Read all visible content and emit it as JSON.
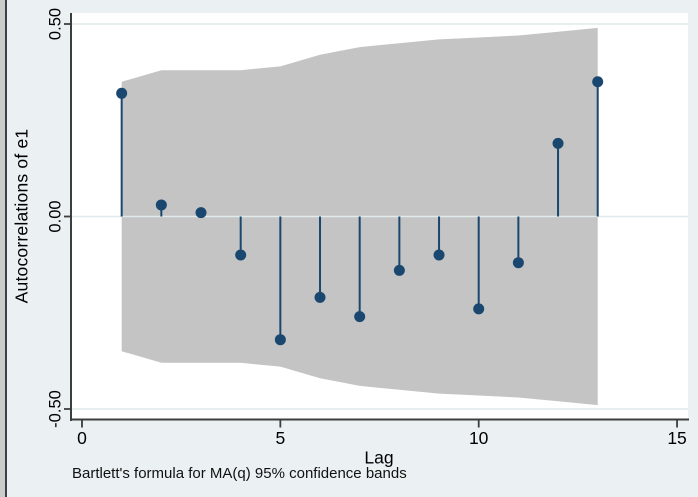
{
  "window": {
    "background": "#ebf1f2",
    "left_border_light": "#c9cccb",
    "left_border_dark": "#3b4145"
  },
  "chart_data": {
    "type": "stem",
    "title": "",
    "ylabel": "Autocorrelations of e1",
    "xlabel": "Lag",
    "note": "Bartlett's formula for MA(q) 95% confidence bands",
    "grid": true,
    "legend_position": "none",
    "xlim": [
      -0.3,
      15.3
    ],
    "ylim": [
      -0.53,
      0.53
    ],
    "x_ticks": [
      {
        "value": 0,
        "label": "0"
      },
      {
        "value": 5,
        "label": "5"
      },
      {
        "value": 10,
        "label": "10"
      },
      {
        "value": 15,
        "label": "15"
      }
    ],
    "y_ticks": [
      {
        "value": 0.5,
        "label": "0.50"
      },
      {
        "value": 0.0,
        "label": "0.00"
      },
      {
        "value": -0.5,
        "label": "-0.50"
      }
    ],
    "lags": [
      1,
      2,
      3,
      4,
      5,
      6,
      7,
      8,
      9,
      10,
      11,
      12,
      13
    ],
    "autocorrelations": [
      0.32,
      0.03,
      0.01,
      -0.1,
      -0.32,
      -0.21,
      -0.26,
      -0.14,
      -0.1,
      -0.24,
      -0.12,
      0.19,
      0.35
    ],
    "confidence_band": {
      "label": "95% confidence bands (Bartlett's formula for MA(q))",
      "upper": [
        0.35,
        0.38,
        0.38,
        0.38,
        0.39,
        0.42,
        0.44,
        0.45,
        0.46,
        0.465,
        0.47,
        0.48,
        0.49
      ],
      "lower": [
        -0.35,
        -0.38,
        -0.38,
        -0.38,
        -0.39,
        -0.42,
        -0.44,
        -0.45,
        -0.46,
        -0.465,
        -0.47,
        -0.48,
        -0.49
      ]
    },
    "colors": {
      "stem": "#1a476f",
      "dot": "#1a476f",
      "band": "#c3c4c3",
      "plot_background": "#ffffff",
      "gridline": "#e0eaec",
      "axis": "#3d3d3d",
      "text": "#000000"
    }
  }
}
